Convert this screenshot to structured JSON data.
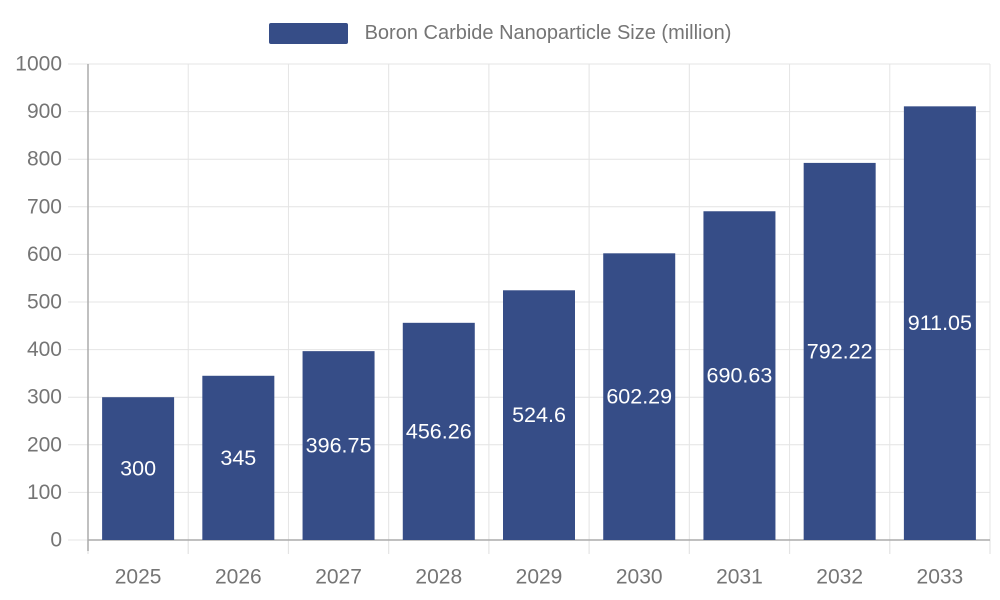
{
  "chart_data": {
    "type": "bar",
    "title": "",
    "series_name": "Boron Carbide Nanoparticle Size (million)",
    "legend": [
      "Boron Carbide Nanoparticle Size (million)"
    ],
    "legend_position": "top-center",
    "categories": [
      "2025",
      "2026",
      "2027",
      "2028",
      "2029",
      "2030",
      "2031",
      "2032",
      "2033"
    ],
    "values": [
      300,
      345,
      396.75,
      456.26,
      524.6,
      602.29,
      690.63,
      792.22,
      911.05
    ],
    "value_labels": [
      "300",
      "345",
      "396.75",
      "456.26",
      "524.6",
      "602.29",
      "690.63",
      "792.22",
      "911.05"
    ],
    "xlabel": "",
    "ylabel": "",
    "ylim": [
      0,
      1000
    ],
    "y_tick_step": 100,
    "y_tick_labels": [
      "0",
      "100",
      "200",
      "300",
      "400",
      "500",
      "600",
      "700",
      "800",
      "900",
      "1000"
    ],
    "grid": true,
    "value_label_position": "inside-center",
    "colors": {
      "bar": "#364d87",
      "value_label": "#ffffff",
      "axis_text": "#757575",
      "legend_text": "#757575",
      "grid_line": "#e4e4e4",
      "axis_line": "#ababab",
      "background": "#ffffff"
    }
  }
}
